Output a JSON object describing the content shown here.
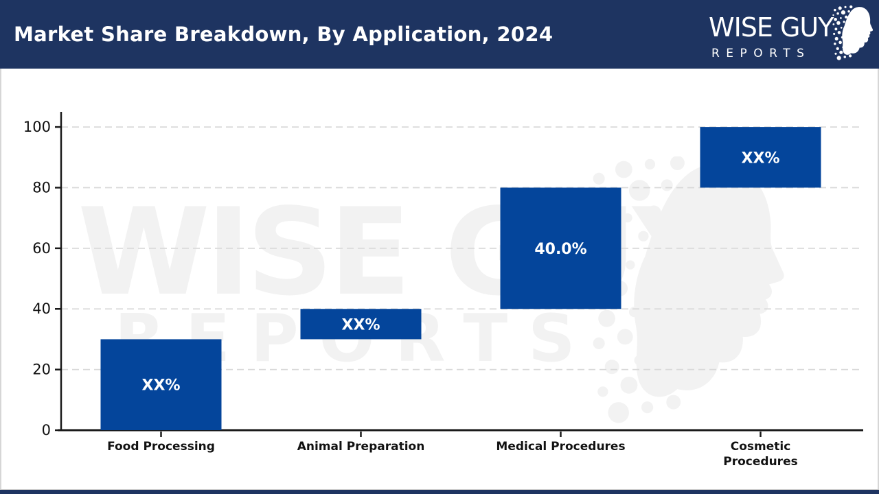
{
  "header": {
    "title": "Market Share Breakdown, By Application, 2024",
    "logo": {
      "line1": "WISE GUY",
      "line2": "REPORTS"
    }
  },
  "watermark": {
    "line1": "WISE GUY",
    "line2": "REPORTS"
  },
  "chart_data": {
    "type": "bar",
    "subtype": "waterfall",
    "title": "Market Share Breakdown, By Application, 2024",
    "categories": [
      "Food Processing",
      "Animal Preparation",
      "Medical Procedures",
      "Cosmetic\nProcedures"
    ],
    "series": [
      {
        "name": "Market Share",
        "segments": [
          {
            "category": "Food Processing",
            "start": 0,
            "end": 30,
            "label": "XX%"
          },
          {
            "category": "Animal Preparation",
            "start": 30,
            "end": 40,
            "label": "XX%"
          },
          {
            "category": "Medical Procedures",
            "start": 40,
            "end": 80,
            "label": "40.0%"
          },
          {
            "category": "Cosmetic Procedures",
            "start": 80,
            "end": 100,
            "label": "XX%"
          }
        ]
      }
    ],
    "yticks": [
      0,
      20,
      40,
      60,
      80,
      100
    ],
    "ylim": [
      0,
      105
    ],
    "xlabel": "",
    "ylabel": "",
    "grid": "dashed-horizontal",
    "legend": "none",
    "colors": {
      "bar": "#04459b",
      "grid": "#d9d9d9",
      "axis": "#1a1a1a",
      "bar_label": "#ffffff",
      "tick_label": "#111111"
    }
  },
  "theme": {
    "header_bg": "#1e3461",
    "footer_bg": "#1e3461",
    "watermark_gray": "#f2f2f2",
    "page_bg": "#ffffff"
  }
}
